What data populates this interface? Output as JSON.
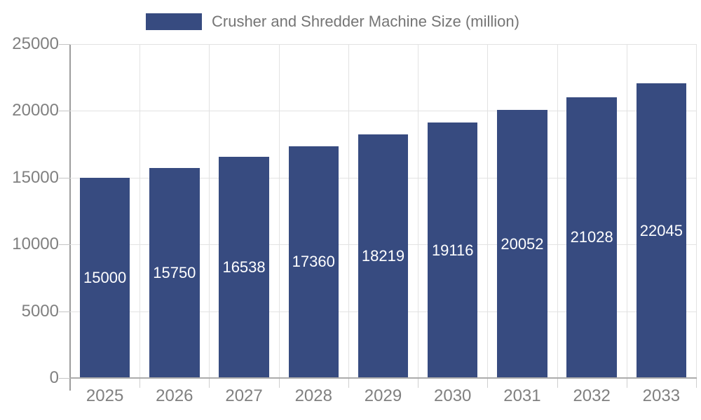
{
  "chart_data": {
    "type": "bar",
    "title": "Crusher and Shredder Machine Size (million)",
    "legend": [
      "Crusher and Shredder Machine Size (million)"
    ],
    "legend_position": "top",
    "categories": [
      "2025",
      "2026",
      "2027",
      "2028",
      "2029",
      "2030",
      "2031",
      "2032",
      "2033"
    ],
    "series": [
      {
        "name": "Crusher and Shredder Machine Size (million)",
        "values": [
          15000,
          15750,
          16538,
          17360,
          18219,
          19116,
          20052,
          21028,
          22045
        ]
      }
    ],
    "value_labels_shown": true,
    "value_label_position": "inside-middle",
    "xlabel": "",
    "ylabel": "",
    "ylim": [
      0,
      25000
    ],
    "y_ticks": [
      0,
      5000,
      10000,
      15000,
      20000,
      25000
    ],
    "grid": "horizontal-and-vertical",
    "colors": {
      "bar": "#374b80",
      "value_label": "#ffffff",
      "axis_text": "#808080",
      "legend_text": "#757575",
      "gridline": "#e2e2e2",
      "axis_line": "#9c9c9c",
      "background": "#ffffff"
    }
  }
}
